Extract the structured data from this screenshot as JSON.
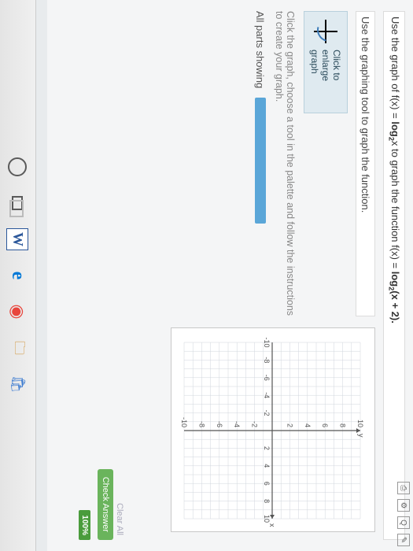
{
  "question": {
    "line1_pre": "Use the graph of f(x) = ",
    "line1_mid": "x to graph the function f(x) = ",
    "log_base": "log",
    "sub": "2",
    "arg": "(x + 2).",
    "line2": "Use the graphing tool to graph the function."
  },
  "enlarge": {
    "l1": "Click to",
    "l2": "enlarge",
    "l3": "graph"
  },
  "hint": "Click the graph, choose a tool in the palette and follow the instructions to create your graph.",
  "parts_label": "All parts showing",
  "clear_all": "Clear All",
  "check": "Check Answer",
  "progress_pct": "100%",
  "graph": {
    "xlim": [
      -10,
      10
    ],
    "ylim": [
      -10,
      10
    ],
    "tick_step": 2,
    "ticks": [
      -10,
      -8,
      -6,
      -4,
      -2,
      2,
      4,
      6,
      8,
      10
    ],
    "grid_color": "#d0d6dc",
    "axis_color": "#555",
    "bg": "#ffffff",
    "axis_label_x": "x",
    "axis_label_y": "y"
  },
  "right_icons": [
    "⎙",
    "⚙",
    "Q",
    "✎"
  ],
  "taskbar": {
    "items": [
      {
        "name": "cortana-icon",
        "glyph": ""
      },
      {
        "name": "taskview-icon",
        "glyph": ""
      },
      {
        "name": "word-icon",
        "glyph": "W",
        "color": "#2b579a",
        "bg": "#fff"
      },
      {
        "name": "edge-icon",
        "glyph": "e",
        "color": "#0078d7"
      },
      {
        "name": "chrome-icon",
        "glyph": "◐",
        "color": "#e8453c"
      },
      {
        "name": "explorer-icon",
        "glyph": "🗀",
        "color": "#f0b94d"
      },
      {
        "name": "store-icon",
        "glyph": "🛍",
        "color": "#3a7ad0"
      }
    ]
  }
}
